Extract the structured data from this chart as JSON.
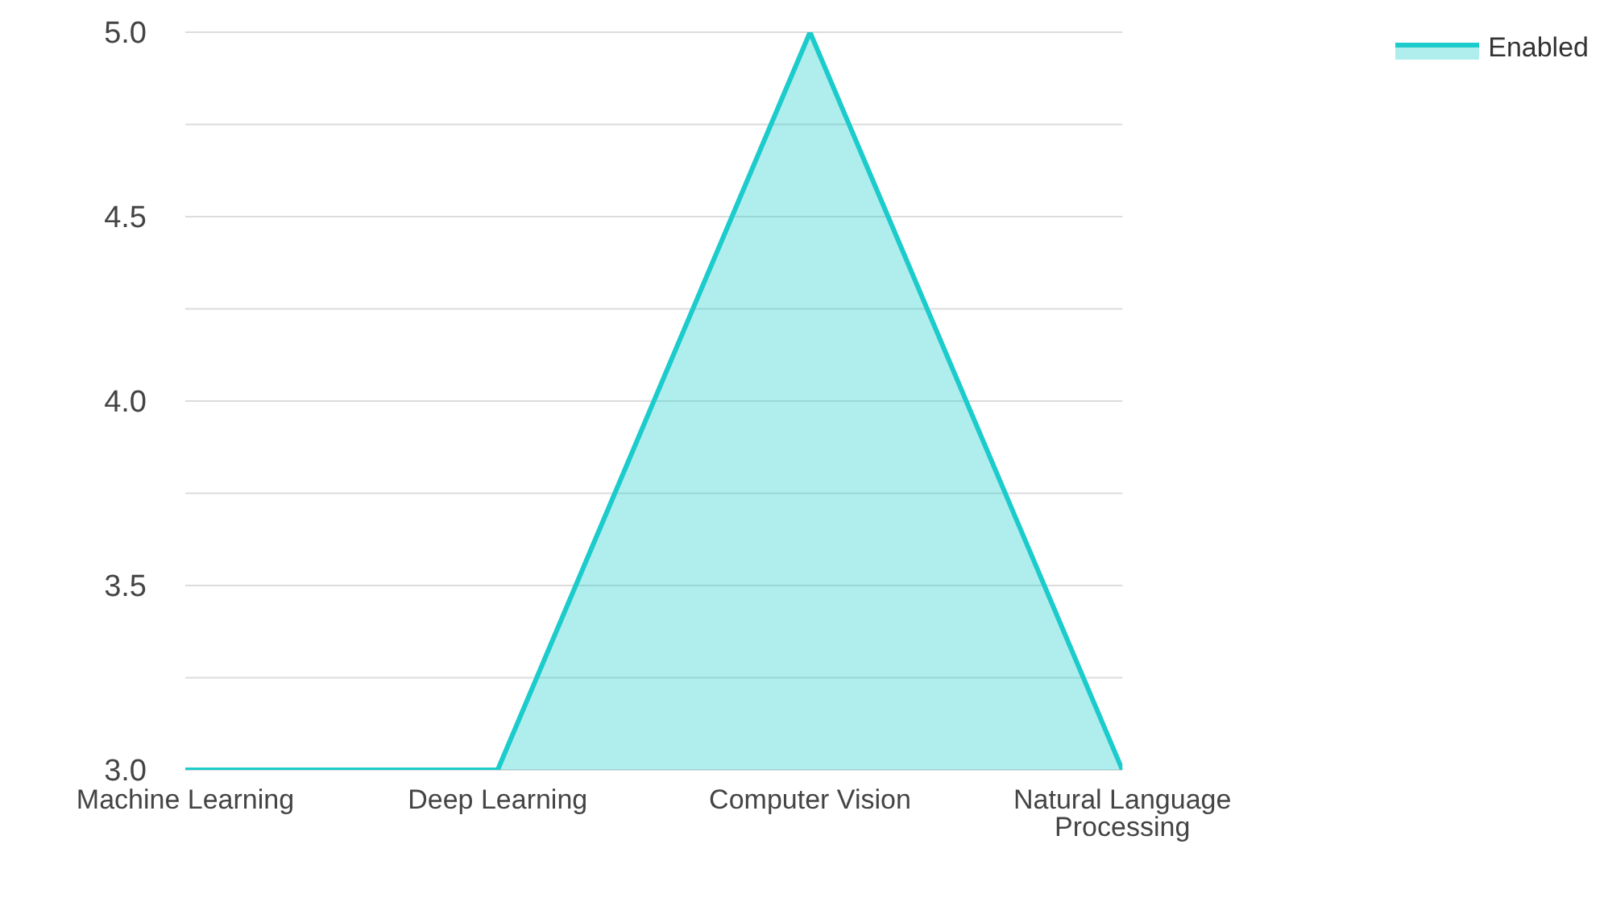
{
  "chart_data": {
    "type": "area",
    "categories": [
      "Machine Learning",
      "Deep Learning",
      "Computer Vision",
      "Natural Language Processing"
    ],
    "series": [
      {
        "name": "Enabled",
        "color": "#1ccbcb",
        "values": [
          3,
          3,
          5,
          3
        ]
      }
    ],
    "ylim": [
      3,
      5
    ],
    "yticks": [
      {
        "value": 3.0,
        "label": "3.0"
      },
      {
        "value": 3.25,
        "label": null
      },
      {
        "value": 3.5,
        "label": "3.5"
      },
      {
        "value": 3.75,
        "label": null
      },
      {
        "value": 4.0,
        "label": "4.0"
      },
      {
        "value": 4.25,
        "label": null
      },
      {
        "value": 4.5,
        "label": "4.5"
      },
      {
        "value": 4.75,
        "label": null
      },
      {
        "value": 5.0,
        "label": "5.0"
      }
    ],
    "grid": "y",
    "legend": "top right"
  }
}
